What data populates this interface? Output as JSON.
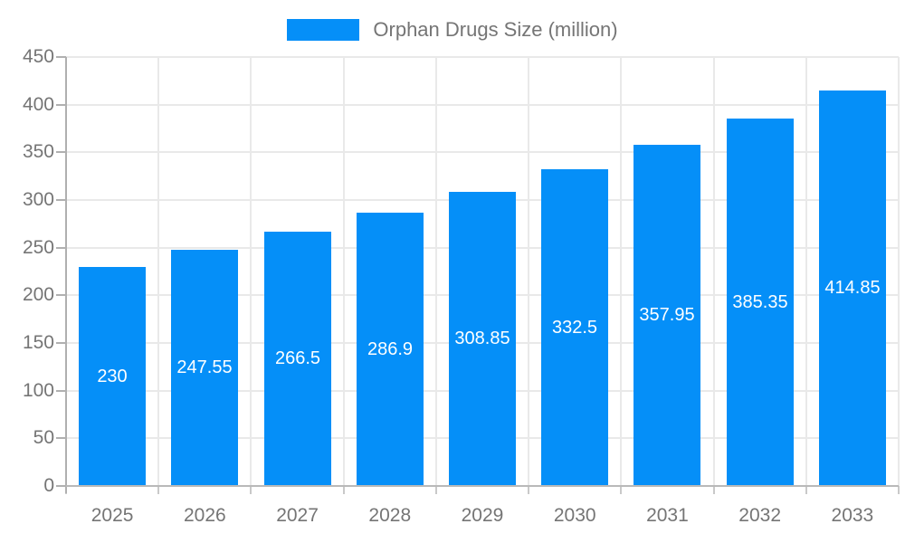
{
  "legend": {
    "label": "Orphan Drugs Size (million)"
  },
  "chart_data": {
    "type": "bar",
    "title": "Orphan Drugs Size (million)",
    "categories": [
      "2025",
      "2026",
      "2027",
      "2028",
      "2029",
      "2030",
      "2031",
      "2032",
      "2033"
    ],
    "values": [
      230,
      247.55,
      266.5,
      286.9,
      308.85,
      332.5,
      357.95,
      385.35,
      414.85
    ],
    "xlabel": "",
    "ylabel": "",
    "ylim": [
      0,
      450
    ],
    "ytick_step": 50,
    "grid": true,
    "legend_position": "top-center",
    "value_labels": "inside-center",
    "colors": {
      "bar": "#058ff8",
      "value_label": "#ffffff",
      "axis_text": "#757575",
      "grid_line": "#e9e9e9",
      "axis_line": "#b0b0b0"
    }
  }
}
